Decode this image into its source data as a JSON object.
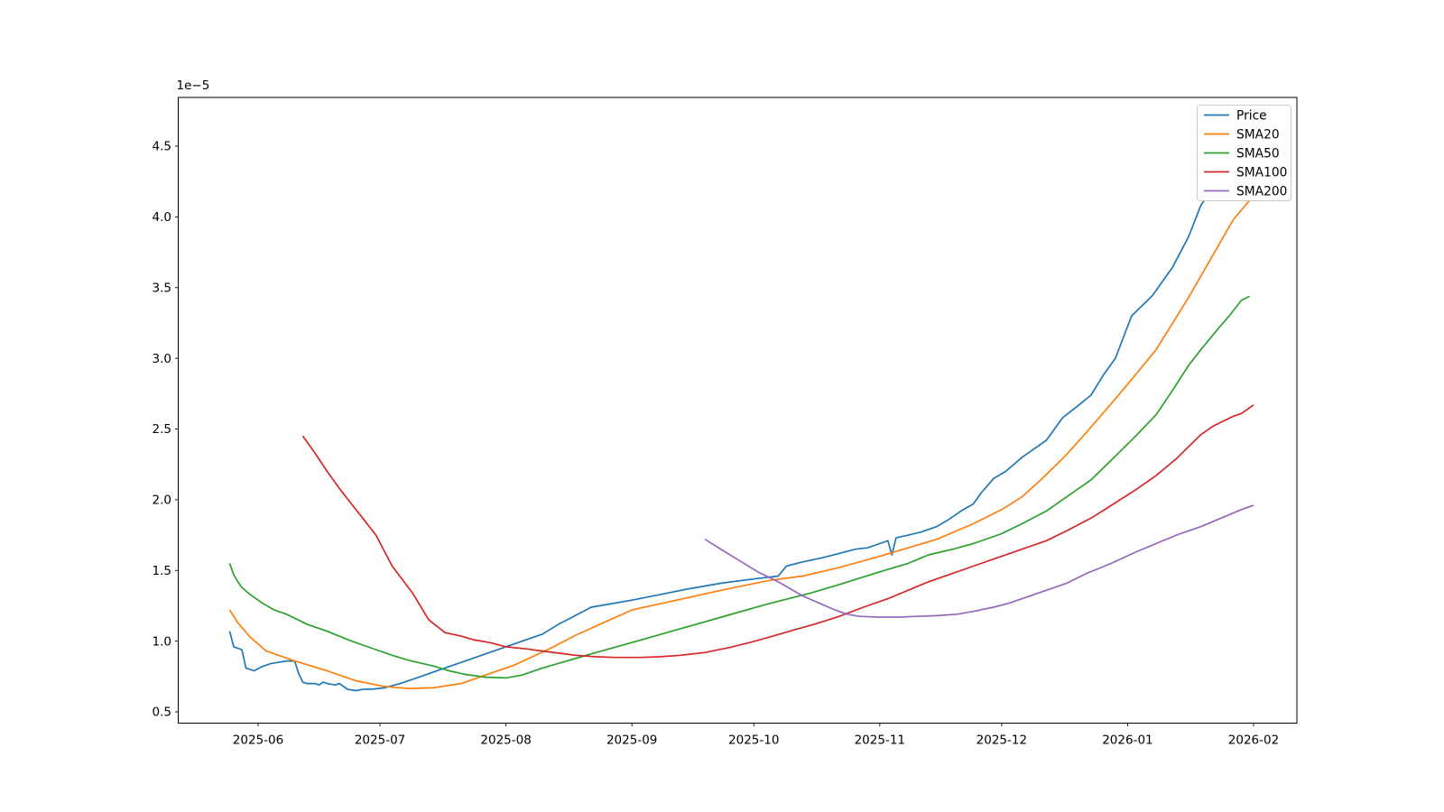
{
  "chart_data": {
    "type": "line",
    "title": "",
    "offset_text": "1e−5",
    "y_unit": "1e-5",
    "xlabel": "",
    "ylabel": "",
    "grid": false,
    "legend_position": "upper right",
    "legend": [
      "Price",
      "SMA20",
      "SMA50",
      "SMA100",
      "SMA200"
    ],
    "ylim": [
      0.42,
      4.84
    ],
    "y_ticks": [
      0.5,
      1.0,
      1.5,
      2.0,
      2.5,
      3.0,
      3.5,
      4.0,
      4.5
    ],
    "x_ticks": [
      {
        "label": "2025-06",
        "date": "2025-06-01"
      },
      {
        "label": "2025-07",
        "date": "2025-07-01"
      },
      {
        "label": "2025-08",
        "date": "2025-08-01"
      },
      {
        "label": "2025-09",
        "date": "2025-09-01"
      },
      {
        "label": "2025-10",
        "date": "2025-10-01"
      },
      {
        "label": "2025-11",
        "date": "2025-11-01"
      },
      {
        "label": "2025-12",
        "date": "2025-12-01"
      },
      {
        "label": "2026-01",
        "date": "2026-01-01"
      },
      {
        "label": "2026-02",
        "date": "2026-02-01"
      }
    ],
    "series": [
      {
        "name": "Price",
        "color": "#1f77b4",
        "points": [
          [
            "2025-05-25",
            1.07
          ],
          [
            "2025-05-26",
            0.96
          ],
          [
            "2025-05-27",
            0.95
          ],
          [
            "2025-05-28",
            0.94
          ],
          [
            "2025-05-29",
            0.81
          ],
          [
            "2025-05-30",
            0.8
          ],
          [
            "2025-05-31",
            0.79
          ],
          [
            "2025-06-02",
            0.82
          ],
          [
            "2025-06-04",
            0.84
          ],
          [
            "2025-06-06",
            0.85
          ],
          [
            "2025-06-08",
            0.86
          ],
          [
            "2025-06-10",
            0.86
          ],
          [
            "2025-06-11",
            0.77
          ],
          [
            "2025-06-12",
            0.71
          ],
          [
            "2025-06-13",
            0.7
          ],
          [
            "2025-06-15",
            0.7
          ],
          [
            "2025-06-16",
            0.69
          ],
          [
            "2025-06-17",
            0.71
          ],
          [
            "2025-06-18",
            0.7
          ],
          [
            "2025-06-20",
            0.69
          ],
          [
            "2025-06-21",
            0.7
          ],
          [
            "2025-06-23",
            0.66
          ],
          [
            "2025-06-25",
            0.65
          ],
          [
            "2025-06-27",
            0.66
          ],
          [
            "2025-06-29",
            0.66
          ],
          [
            "2025-07-02",
            0.67
          ],
          [
            "2025-07-06",
            0.7
          ],
          [
            "2025-07-10",
            0.74
          ],
          [
            "2025-07-14",
            0.78
          ],
          [
            "2025-07-20",
            0.84
          ],
          [
            "2025-07-26",
            0.9
          ],
          [
            "2025-08-02",
            0.97
          ],
          [
            "2025-08-06",
            1.01
          ],
          [
            "2025-08-10",
            1.05
          ],
          [
            "2025-08-14",
            1.12
          ],
          [
            "2025-08-18",
            1.18
          ],
          [
            "2025-08-22",
            1.24
          ],
          [
            "2025-08-26",
            1.26
          ],
          [
            "2025-09-01",
            1.29
          ],
          [
            "2025-09-08",
            1.33
          ],
          [
            "2025-09-15",
            1.37
          ],
          [
            "2025-09-23",
            1.41
          ],
          [
            "2025-10-01",
            1.44
          ],
          [
            "2025-10-07",
            1.46
          ],
          [
            "2025-10-09",
            1.53
          ],
          [
            "2025-10-13",
            1.56
          ],
          [
            "2025-10-18",
            1.59
          ],
          [
            "2025-10-22",
            1.62
          ],
          [
            "2025-10-26",
            1.65
          ],
          [
            "2025-10-29",
            1.66
          ],
          [
            "2025-11-01",
            1.69
          ],
          [
            "2025-11-03",
            1.71
          ],
          [
            "2025-11-04",
            1.61
          ],
          [
            "2025-11-05",
            1.73
          ],
          [
            "2025-11-08",
            1.75
          ],
          [
            "2025-11-11",
            1.77
          ],
          [
            "2025-11-15",
            1.81
          ],
          [
            "2025-11-18",
            1.86
          ],
          [
            "2025-11-21",
            1.92
          ],
          [
            "2025-11-24",
            1.97
          ],
          [
            "2025-11-26",
            2.05
          ],
          [
            "2025-11-29",
            2.15
          ],
          [
            "2025-12-02",
            2.2
          ],
          [
            "2025-12-06",
            2.3
          ],
          [
            "2025-12-09",
            2.36
          ],
          [
            "2025-12-12",
            2.42
          ],
          [
            "2025-12-16",
            2.58
          ],
          [
            "2025-12-20",
            2.67
          ],
          [
            "2025-12-23",
            2.74
          ],
          [
            "2025-12-26",
            2.88
          ],
          [
            "2025-12-29",
            3.0
          ],
          [
            "2026-01-02",
            3.3
          ],
          [
            "2026-01-07",
            3.44
          ],
          [
            "2026-01-12",
            3.64
          ],
          [
            "2026-01-16",
            3.86
          ],
          [
            "2026-01-19",
            4.08
          ],
          [
            "2026-01-23",
            4.25
          ],
          [
            "2026-01-27",
            4.45
          ],
          [
            "2026-02-01",
            4.64
          ]
        ]
      },
      {
        "name": "SMA20",
        "color": "#ff7f0e",
        "points": [
          [
            "2025-05-25",
            1.22
          ],
          [
            "2025-05-27",
            1.13
          ],
          [
            "2025-05-30",
            1.03
          ],
          [
            "2025-06-03",
            0.93
          ],
          [
            "2025-06-10",
            0.86
          ],
          [
            "2025-06-18",
            0.79
          ],
          [
            "2025-06-25",
            0.72
          ],
          [
            "2025-07-02",
            0.68
          ],
          [
            "2025-07-08",
            0.665
          ],
          [
            "2025-07-14",
            0.67
          ],
          [
            "2025-07-21",
            0.7
          ],
          [
            "2025-07-27",
            0.76
          ],
          [
            "2025-08-03",
            0.83
          ],
          [
            "2025-08-12",
            0.95
          ],
          [
            "2025-08-18",
            1.04
          ],
          [
            "2025-08-25",
            1.13
          ],
          [
            "2025-09-01",
            1.22
          ],
          [
            "2025-09-12",
            1.29
          ],
          [
            "2025-09-23",
            1.36
          ],
          [
            "2025-10-05",
            1.43
          ],
          [
            "2025-10-13",
            1.46
          ],
          [
            "2025-10-22",
            1.52
          ],
          [
            "2025-11-01",
            1.6
          ],
          [
            "2025-11-08",
            1.66
          ],
          [
            "2025-11-15",
            1.72
          ],
          [
            "2025-11-24",
            1.83
          ],
          [
            "2025-12-01",
            1.93
          ],
          [
            "2025-12-06",
            2.02
          ],
          [
            "2025-12-11",
            2.15
          ],
          [
            "2025-12-17",
            2.32
          ],
          [
            "2025-12-22",
            2.48
          ],
          [
            "2025-12-28",
            2.68
          ],
          [
            "2026-01-02",
            2.85
          ],
          [
            "2026-01-08",
            3.06
          ],
          [
            "2026-01-16",
            3.43
          ],
          [
            "2026-01-22",
            3.73
          ],
          [
            "2026-01-27",
            3.98
          ],
          [
            "2026-02-01",
            4.15
          ]
        ]
      },
      {
        "name": "SMA50",
        "color": "#2ca02c",
        "points": [
          [
            "2025-05-25",
            1.55
          ],
          [
            "2025-05-26",
            1.47
          ],
          [
            "2025-05-27",
            1.42
          ],
          [
            "2025-05-28",
            1.38
          ],
          [
            "2025-05-30",
            1.33
          ],
          [
            "2025-06-02",
            1.27
          ],
          [
            "2025-06-05",
            1.22
          ],
          [
            "2025-06-08",
            1.19
          ],
          [
            "2025-06-13",
            1.12
          ],
          [
            "2025-06-18",
            1.07
          ],
          [
            "2025-06-24",
            1.0
          ],
          [
            "2025-06-29",
            0.95
          ],
          [
            "2025-07-04",
            0.9
          ],
          [
            "2025-07-08",
            0.865
          ],
          [
            "2025-07-14",
            0.825
          ],
          [
            "2025-07-18",
            0.79
          ],
          [
            "2025-07-22",
            0.765
          ],
          [
            "2025-07-27",
            0.745
          ],
          [
            "2025-08-01",
            0.74
          ],
          [
            "2025-08-05",
            0.76
          ],
          [
            "2025-08-10",
            0.81
          ],
          [
            "2025-08-16",
            0.86
          ],
          [
            "2025-08-22",
            0.91
          ],
          [
            "2025-09-01",
            0.99
          ],
          [
            "2025-09-12",
            1.08
          ],
          [
            "2025-09-23",
            1.17
          ],
          [
            "2025-10-04",
            1.26
          ],
          [
            "2025-10-15",
            1.34
          ],
          [
            "2025-10-22",
            1.4
          ],
          [
            "2025-11-01",
            1.49
          ],
          [
            "2025-11-08",
            1.55
          ],
          [
            "2025-11-13",
            1.61
          ],
          [
            "2025-11-19",
            1.65
          ],
          [
            "2025-11-24",
            1.69
          ],
          [
            "2025-12-01",
            1.76
          ],
          [
            "2025-12-06",
            1.83
          ],
          [
            "2025-12-12",
            1.92
          ],
          [
            "2025-12-17",
            2.02
          ],
          [
            "2025-12-23",
            2.14
          ],
          [
            "2025-12-28",
            2.28
          ],
          [
            "2026-01-03",
            2.45
          ],
          [
            "2026-01-08",
            2.6
          ],
          [
            "2026-01-12",
            2.77
          ],
          [
            "2026-01-16",
            2.95
          ],
          [
            "2026-01-19",
            3.06
          ],
          [
            "2026-01-23",
            3.2
          ],
          [
            "2026-01-26",
            3.3
          ],
          [
            "2026-01-29",
            3.41
          ],
          [
            "2026-01-31",
            3.44
          ]
        ]
      },
      {
        "name": "SMA100",
        "color": "#d62728",
        "points": [
          [
            "2025-06-12",
            2.45
          ],
          [
            "2025-06-15",
            2.33
          ],
          [
            "2025-06-18",
            2.2
          ],
          [
            "2025-06-21",
            2.08
          ],
          [
            "2025-06-24",
            1.97
          ],
          [
            "2025-06-27",
            1.86
          ],
          [
            "2025-06-30",
            1.75
          ],
          [
            "2025-07-04",
            1.53
          ],
          [
            "2025-07-09",
            1.34
          ],
          [
            "2025-07-13",
            1.15
          ],
          [
            "2025-07-17",
            1.06
          ],
          [
            "2025-07-21",
            1.035
          ],
          [
            "2025-07-24",
            1.01
          ],
          [
            "2025-07-28",
            0.99
          ],
          [
            "2025-08-01",
            0.96
          ],
          [
            "2025-08-06",
            0.945
          ],
          [
            "2025-08-10",
            0.93
          ],
          [
            "2025-08-14",
            0.915
          ],
          [
            "2025-08-18",
            0.9
          ],
          [
            "2025-08-23",
            0.89
          ],
          [
            "2025-08-28",
            0.885
          ],
          [
            "2025-09-03",
            0.885
          ],
          [
            "2025-09-08",
            0.89
          ],
          [
            "2025-09-13",
            0.9
          ],
          [
            "2025-09-19",
            0.92
          ],
          [
            "2025-09-25",
            0.955
          ],
          [
            "2025-09-30",
            0.99
          ],
          [
            "2025-10-05",
            1.03
          ],
          [
            "2025-10-11",
            1.08
          ],
          [
            "2025-10-16",
            1.12
          ],
          [
            "2025-10-22",
            1.175
          ],
          [
            "2025-10-28",
            1.24
          ],
          [
            "2025-11-03",
            1.3
          ],
          [
            "2025-11-08",
            1.36
          ],
          [
            "2025-11-13",
            1.42
          ],
          [
            "2025-11-19",
            1.48
          ],
          [
            "2025-11-24",
            1.53
          ],
          [
            "2025-12-01",
            1.6
          ],
          [
            "2025-12-06",
            1.65
          ],
          [
            "2025-12-12",
            1.71
          ],
          [
            "2025-12-17",
            1.78
          ],
          [
            "2025-12-23",
            1.87
          ],
          [
            "2025-12-28",
            1.96
          ],
          [
            "2026-01-03",
            2.07
          ],
          [
            "2026-01-08",
            2.17
          ],
          [
            "2026-01-13",
            2.29
          ],
          [
            "2026-01-19",
            2.46
          ],
          [
            "2026-01-22",
            2.52
          ],
          [
            "2026-01-27",
            2.59
          ],
          [
            "2026-01-29",
            2.61
          ],
          [
            "2026-02-01",
            2.67
          ]
        ]
      },
      {
        "name": "SMA200",
        "color": "#9467bd",
        "points": [
          [
            "2025-09-19",
            1.72
          ],
          [
            "2025-09-24",
            1.63
          ],
          [
            "2025-09-28",
            1.56
          ],
          [
            "2025-10-02",
            1.49
          ],
          [
            "2025-10-07",
            1.42
          ],
          [
            "2025-10-10",
            1.37
          ],
          [
            "2025-10-13",
            1.32
          ],
          [
            "2025-10-17",
            1.27
          ],
          [
            "2025-10-21",
            1.22
          ],
          [
            "2025-10-24",
            1.19
          ],
          [
            "2025-10-27",
            1.175
          ],
          [
            "2025-11-01",
            1.17
          ],
          [
            "2025-11-06",
            1.17
          ],
          [
            "2025-11-10",
            1.175
          ],
          [
            "2025-11-15",
            1.18
          ],
          [
            "2025-11-20",
            1.19
          ],
          [
            "2025-11-24",
            1.21
          ],
          [
            "2025-11-29",
            1.24
          ],
          [
            "2025-12-03",
            1.27
          ],
          [
            "2025-12-06",
            1.3
          ],
          [
            "2025-12-11",
            1.35
          ],
          [
            "2025-12-17",
            1.41
          ],
          [
            "2025-12-22",
            1.48
          ],
          [
            "2025-12-28",
            1.55
          ],
          [
            "2026-01-03",
            1.63
          ],
          [
            "2026-01-08",
            1.69
          ],
          [
            "2026-01-13",
            1.75
          ],
          [
            "2026-01-19",
            1.81
          ],
          [
            "2026-01-24",
            1.87
          ],
          [
            "2026-01-29",
            1.93
          ],
          [
            "2026-02-01",
            1.96
          ]
        ]
      }
    ]
  }
}
